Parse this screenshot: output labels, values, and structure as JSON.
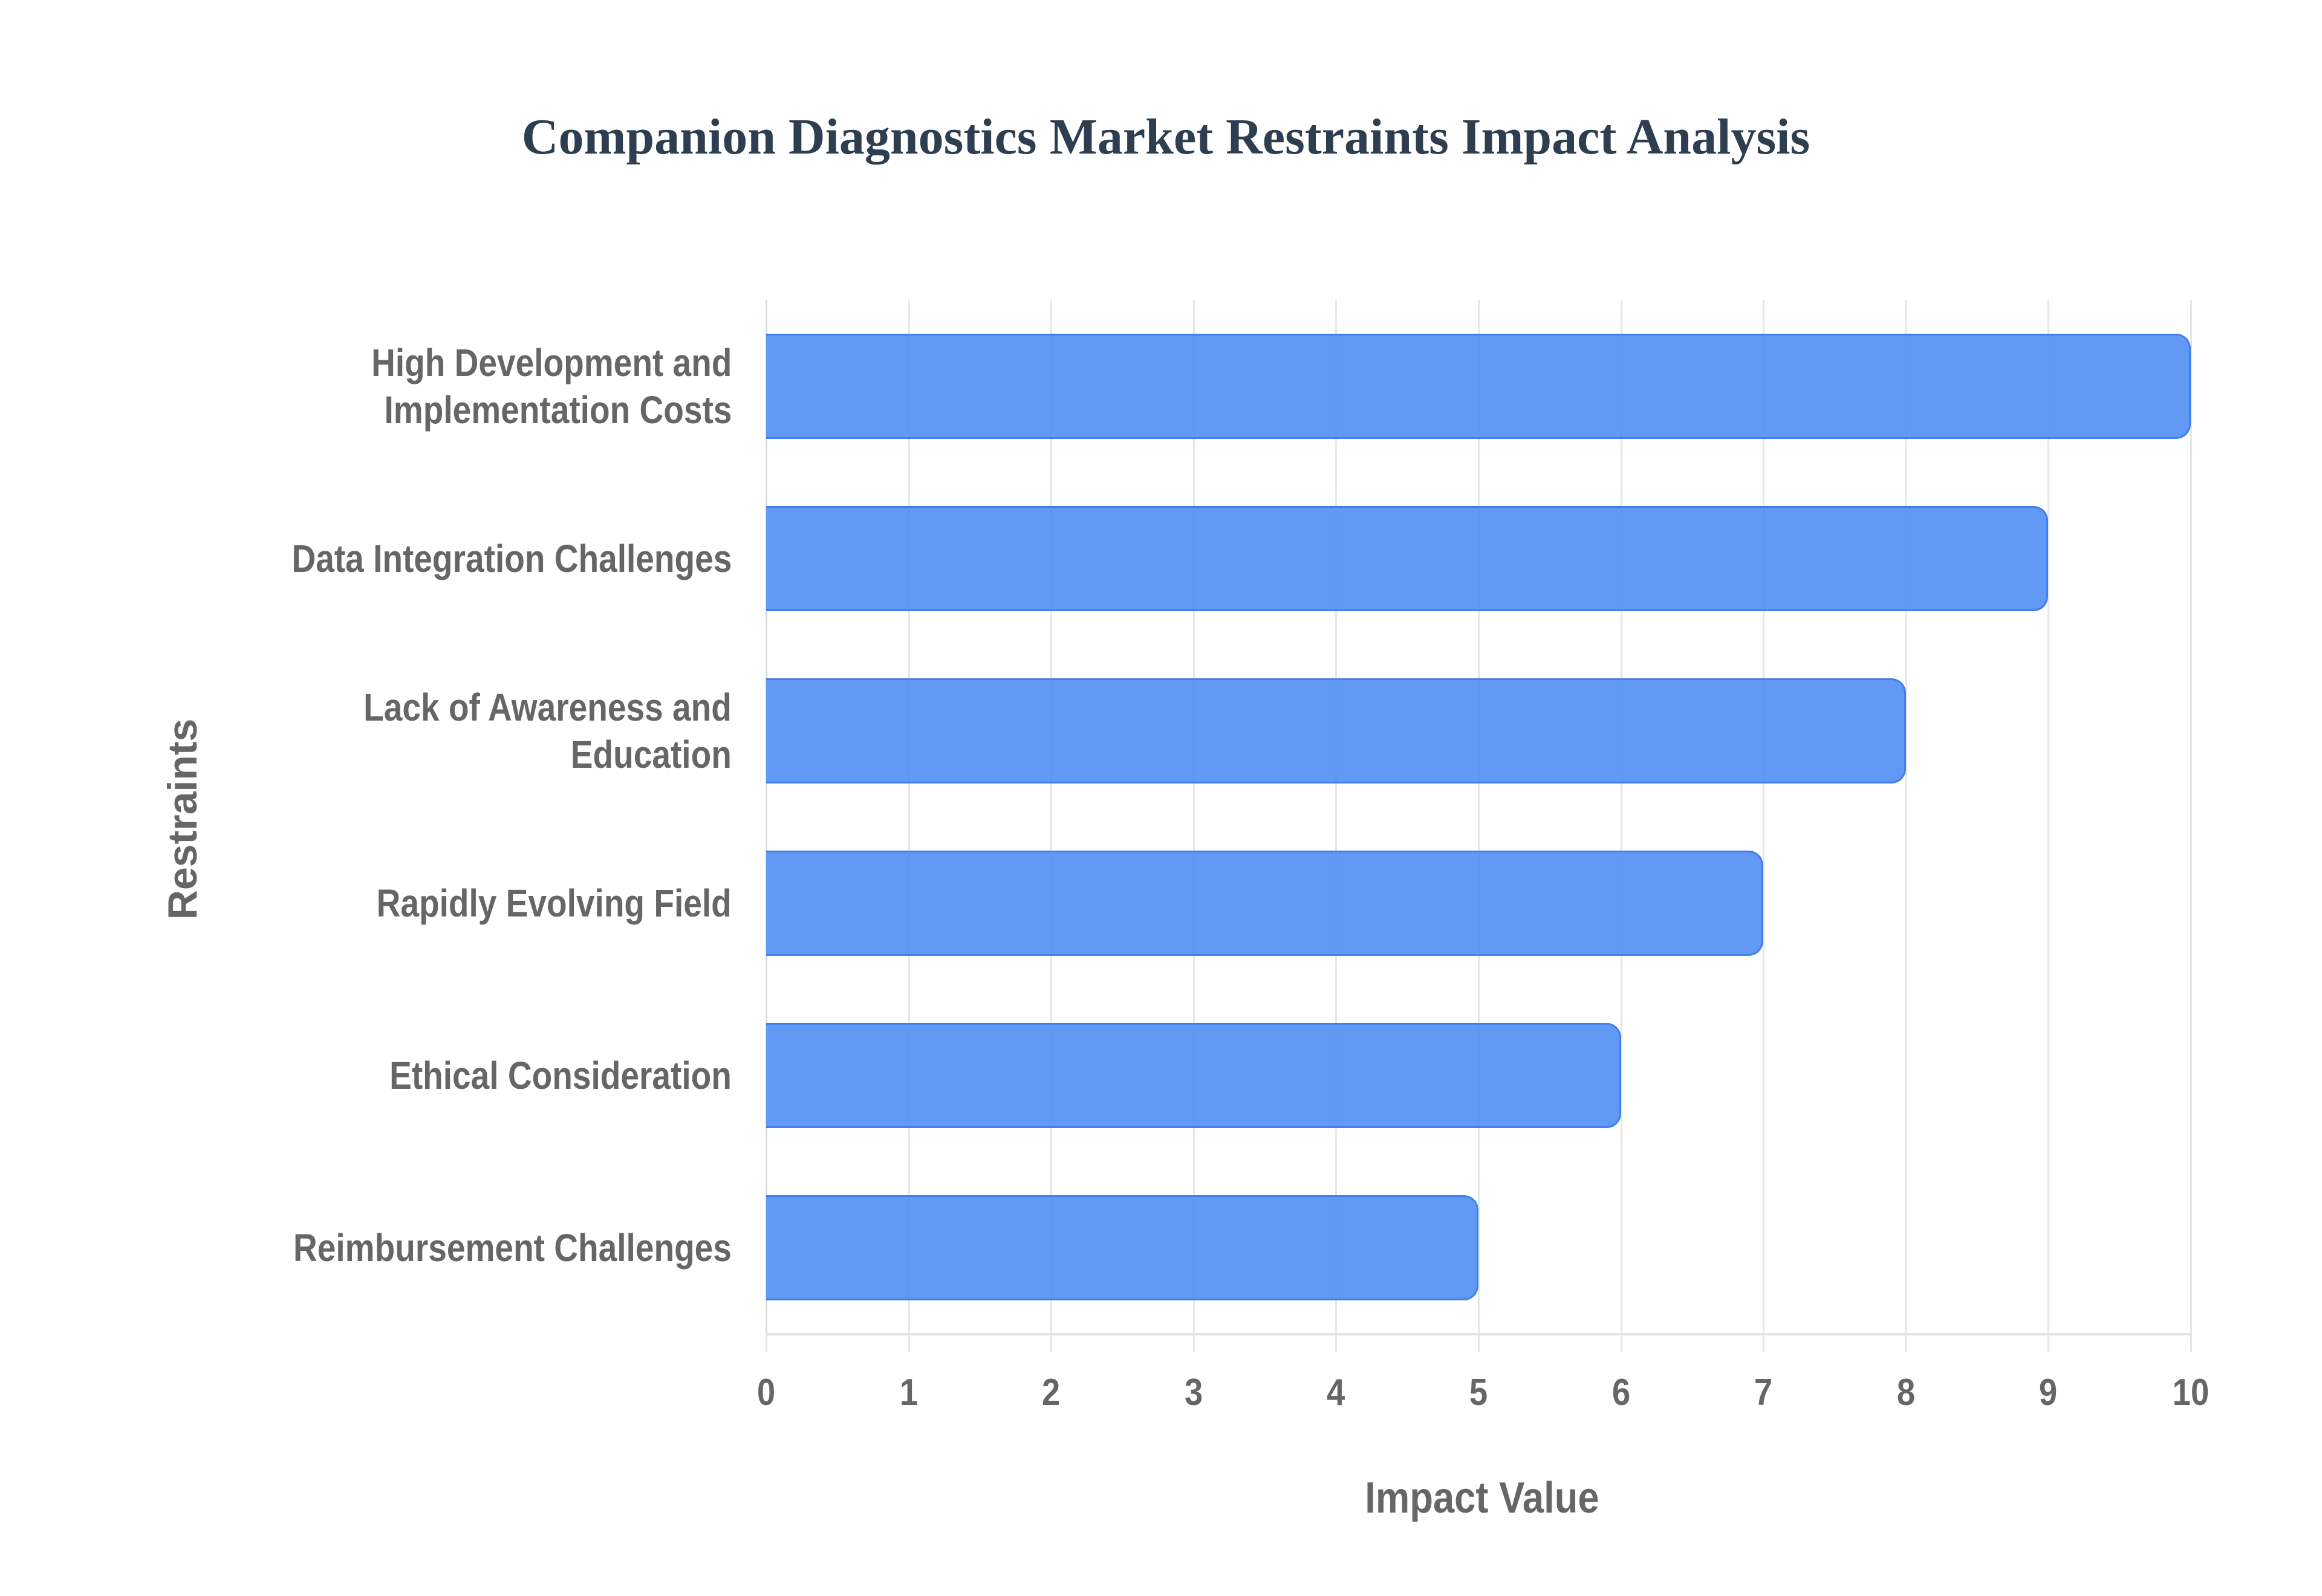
{
  "chart_data": {
    "type": "bar",
    "orientation": "horizontal",
    "title": "Companion Diagnostics Market Restraints Impact Analysis",
    "xlabel": "Impact Value",
    "ylabel": "Restraints",
    "categories": [
      "High Development and\nImplementation Costs",
      "Data Integration Challenges",
      "Lack of Awareness and\nEducation",
      "Rapidly Evolving Field",
      "Ethical Consideration",
      "Reimbursement Challenges"
    ],
    "values": [
      10,
      9,
      8,
      7,
      6,
      5
    ],
    "xlim": [
      0,
      10
    ],
    "xticks": [
      "0",
      "1",
      "2",
      "3",
      "4",
      "5",
      "6",
      "7",
      "8",
      "9",
      "10"
    ],
    "grid": true,
    "legend": null,
    "colors": {
      "bar_fill": "#5a94f4",
      "bar_border": "#3f80ec",
      "title": "#2c3e50",
      "axis_text": "#666666",
      "grid": "#e6e6e6"
    }
  }
}
